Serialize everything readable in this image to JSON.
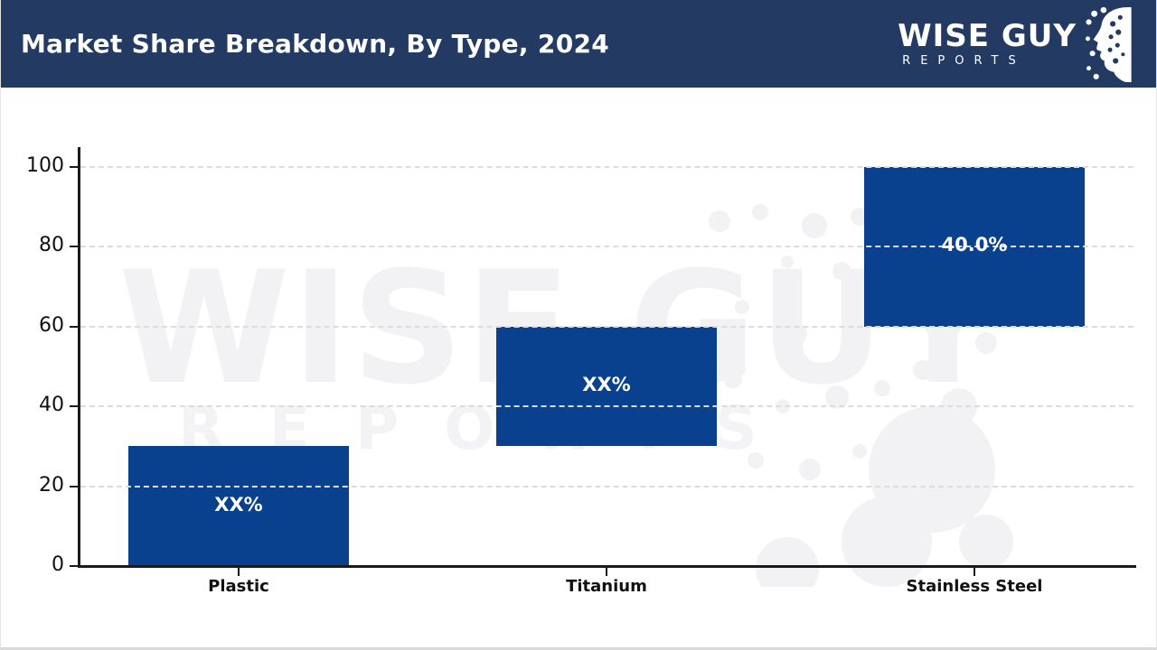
{
  "header": {
    "title": "Market Share Breakdown, By Type, 2024",
    "logo": {
      "line1": "WISE GUY",
      "line2": "REPORTS"
    }
  },
  "watermark": {
    "line1": "WISE GUY",
    "line2": "REPORTS"
  },
  "chart_data": {
    "type": "bar",
    "subtype": "waterfall",
    "title": "Market Share Breakdown, By Type, 2024",
    "categories": [
      "Plastic",
      "Titanium",
      "Stainless Steel"
    ],
    "segments": [
      {
        "category": "Plastic",
        "start": 0,
        "end": 30,
        "label": "XX%"
      },
      {
        "category": "Titanium",
        "start": 30,
        "end": 60,
        "label": "XX%"
      },
      {
        "category": "Stainless Steel",
        "start": 60,
        "end": 100,
        "label": "40.0%"
      }
    ],
    "xlabel": "",
    "ylabel": "",
    "yticks": [
      0,
      20,
      40,
      60,
      80,
      100
    ],
    "ylim": [
      0,
      105
    ],
    "grid": "horizontal-dashed",
    "legend": "none",
    "colors": {
      "bar": "#0a418f",
      "grid": "#dcdcdc",
      "axis": "#1a1a1a",
      "bar_label_text": "#ffffff",
      "header_bg": "#233a63",
      "watermark": "#f2f2f5"
    }
  }
}
